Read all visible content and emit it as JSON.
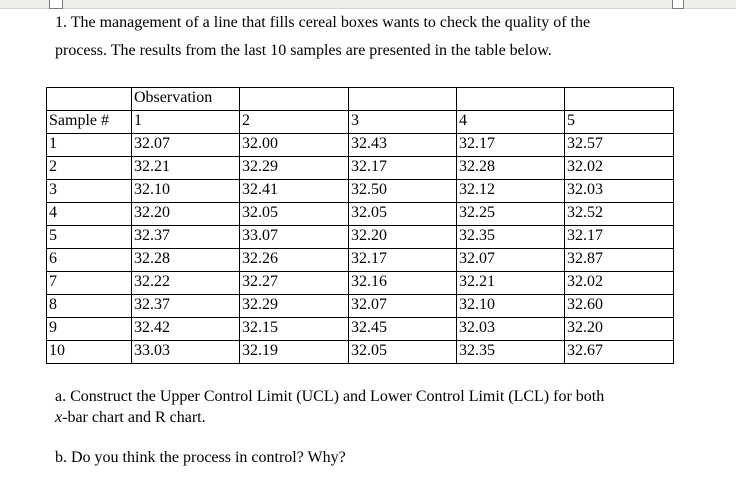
{
  "chrome": {
    "ruler_strip_color": "#f0eeea",
    "ruler_marker_border_color": "#7b7b7b"
  },
  "document": {
    "intro_line1": "1. The management of a line that fills cereal boxes wants to check the quality of the",
    "intro_line2": "process. The results from the last 10 samples are presented in the table below.",
    "question_a_line1": "a. Construct the Upper Control Limit (UCL) and Lower Control Limit (LCL) for both",
    "question_a_line2_italic": "x",
    "question_a_line2_rest": "-bar chart and R chart.",
    "question_b": "b. Do you think the process in control? Why?"
  },
  "table": {
    "header_group_label": "Observation",
    "row_header_label": "Sample #",
    "observation_columns": [
      "1",
      "2",
      "3",
      "4",
      "5"
    ],
    "rows": [
      {
        "sample": "1",
        "values": [
          "32.07",
          "32.00",
          "32.43",
          "32.17",
          "32.57"
        ]
      },
      {
        "sample": "2",
        "values": [
          "32.21",
          "32.29",
          "32.17",
          "32.28",
          "32.02"
        ]
      },
      {
        "sample": "3",
        "values": [
          "32.10",
          "32.41",
          "32.50",
          "32.12",
          "32.03"
        ]
      },
      {
        "sample": "4",
        "values": [
          "32.20",
          "32.05",
          "32.05",
          "32.25",
          "32.52"
        ]
      },
      {
        "sample": "5",
        "values": [
          "32.37",
          "33.07",
          "32.20",
          "32.35",
          "32.17"
        ]
      },
      {
        "sample": "6",
        "values": [
          "32.28",
          "32.26",
          "32.17",
          "32.07",
          "32.87"
        ]
      },
      {
        "sample": "7",
        "values": [
          "32.22",
          "32.27",
          "32.16",
          "32.21",
          "32.02"
        ]
      },
      {
        "sample": "8",
        "values": [
          "32.37",
          "32.29",
          "32.07",
          "32.10",
          "32.60"
        ]
      },
      {
        "sample": "9",
        "values": [
          "32.42",
          "32.15",
          "32.45",
          "32.03",
          "32.20"
        ]
      },
      {
        "sample": "10",
        "values": [
          "33.03",
          "32.19",
          "32.05",
          "32.35",
          "32.67"
        ]
      }
    ]
  }
}
